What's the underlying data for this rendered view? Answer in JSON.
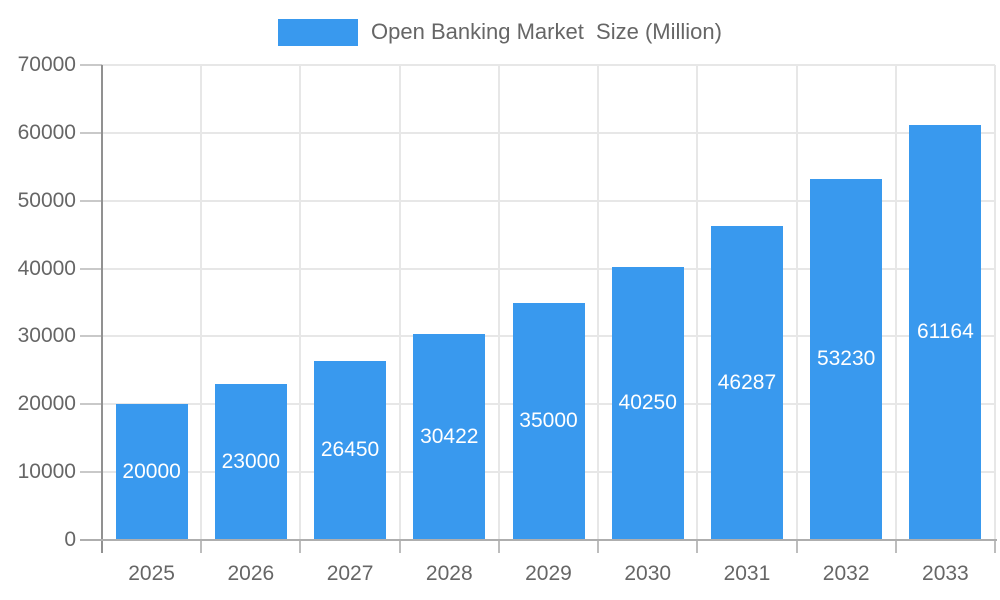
{
  "chart_data": {
    "type": "bar",
    "title": "Open Banking Market  Size (Million)",
    "categories": [
      "2025",
      "2026",
      "2027",
      "2028",
      "2029",
      "2030",
      "2031",
      "2032",
      "2033"
    ],
    "values": [
      20000,
      23000,
      26450,
      30422,
      35000,
      40250,
      46287,
      53230,
      61164
    ],
    "xlabel": "",
    "ylabel": "",
    "ylim": [
      0,
      70000
    ],
    "ytick_step": 10000,
    "ytick_labels": [
      "0",
      "10000",
      "20000",
      "30000",
      "40000",
      "50000",
      "60000",
      "70000"
    ],
    "grid": true,
    "legend_position": "top-center",
    "bar_label_position": "inside-center"
  },
  "colors": {
    "bar": "#3999EE",
    "bar_label": "#FFFFFF",
    "axis_text": "#666666",
    "grid_line": "#E7E7E7",
    "y_axis_line": "#919191",
    "x_axis_line": "#AEAEAE",
    "y_tick": "#C9C9C9",
    "x_tick": "#BDBDBD"
  }
}
